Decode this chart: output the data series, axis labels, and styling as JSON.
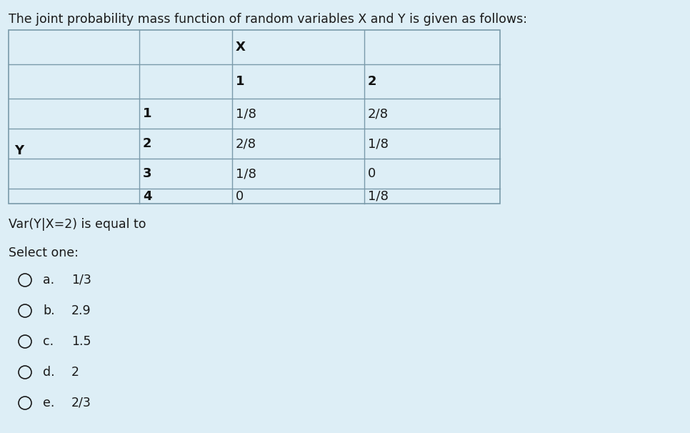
{
  "title": "The joint probability mass function of random variables X and Y is given as follows:",
  "background_color": "#ddeef6",
  "table_line_color": "#7a9aaa",
  "title_fontsize": 12.5,
  "table": {
    "x_vals": [
      "1",
      "2"
    ],
    "y_label": "Y",
    "y_vals": [
      "1",
      "2",
      "3",
      "4"
    ],
    "data": [
      [
        "1/8",
        "2/8"
      ],
      [
        "2/8",
        "1/8"
      ],
      [
        "1/8",
        "0"
      ],
      [
        "0",
        "1/8"
      ]
    ]
  },
  "question": "Var(Y|X=2) is equal to",
  "select_one": "Select one:",
  "options": [
    [
      "a.",
      "1/3"
    ],
    [
      "b.",
      "2.9"
    ],
    [
      "c.",
      "1.5"
    ],
    [
      "d.",
      "2"
    ],
    [
      "e.",
      "2/3"
    ]
  ],
  "text_color": "#1a1a1a",
  "bold_color": "#111111",
  "option_fontsize": 12.5,
  "question_fontsize": 12.5,
  "table_fontsize": 13.0
}
